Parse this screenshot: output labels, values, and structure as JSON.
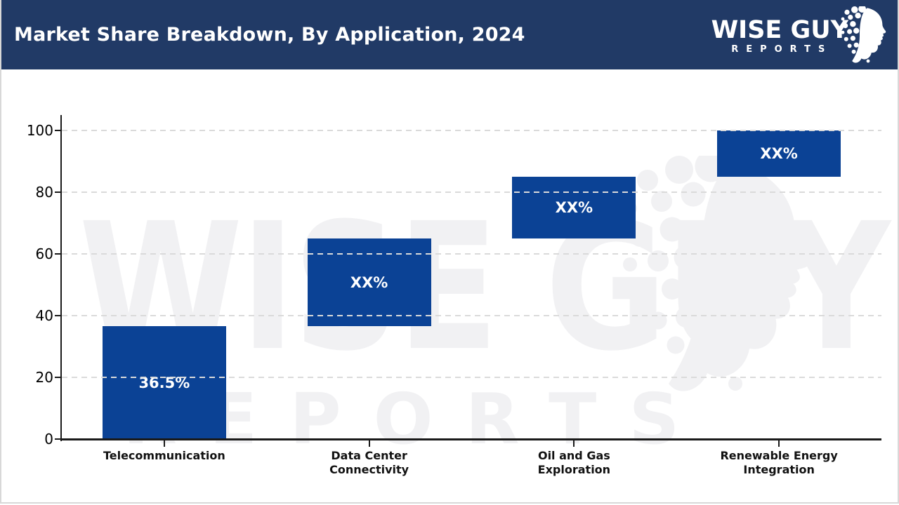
{
  "header": {
    "logo": {
      "line1": "WISE GUY",
      "line2": "REPORTS"
    }
  },
  "watermark": {
    "line1": "WISE GUY",
    "line2": "REPORTS"
  },
  "colors": {
    "header_bg": "#213a66",
    "bar": "#0b4295",
    "bar_label": "#ffffff",
    "axis": "#1a1a1a",
    "gridline": "#dadada",
    "watermark": "#f1f1f3"
  },
  "chart_data": {
    "type": "bar",
    "subtype": "floating-waterfall",
    "title": "Market Share Breakdown, By Application, 2024",
    "categories": [
      "Telecommunication",
      "Data Center\nConnectivity",
      "Oil and Gas\nExploration",
      "Renewable Energy\nIntegration"
    ],
    "bars": [
      {
        "category": "Telecommunication",
        "start": 0,
        "end": 36.5,
        "label": "36.5%"
      },
      {
        "category": "Data Center Connectivity",
        "start": 36.5,
        "end": 65,
        "label": "XX%"
      },
      {
        "category": "Oil and Gas Exploration",
        "start": 65,
        "end": 85,
        "label": "XX%"
      },
      {
        "category": "Renewable Energy Integration",
        "start": 85,
        "end": 100,
        "label": "XX%"
      }
    ],
    "yticks": [
      0,
      20,
      40,
      60,
      80,
      100
    ],
    "ylim": [
      0,
      105
    ],
    "xlabel": "",
    "ylabel": "",
    "grid": "horizontal-dashed",
    "legend": "none"
  }
}
